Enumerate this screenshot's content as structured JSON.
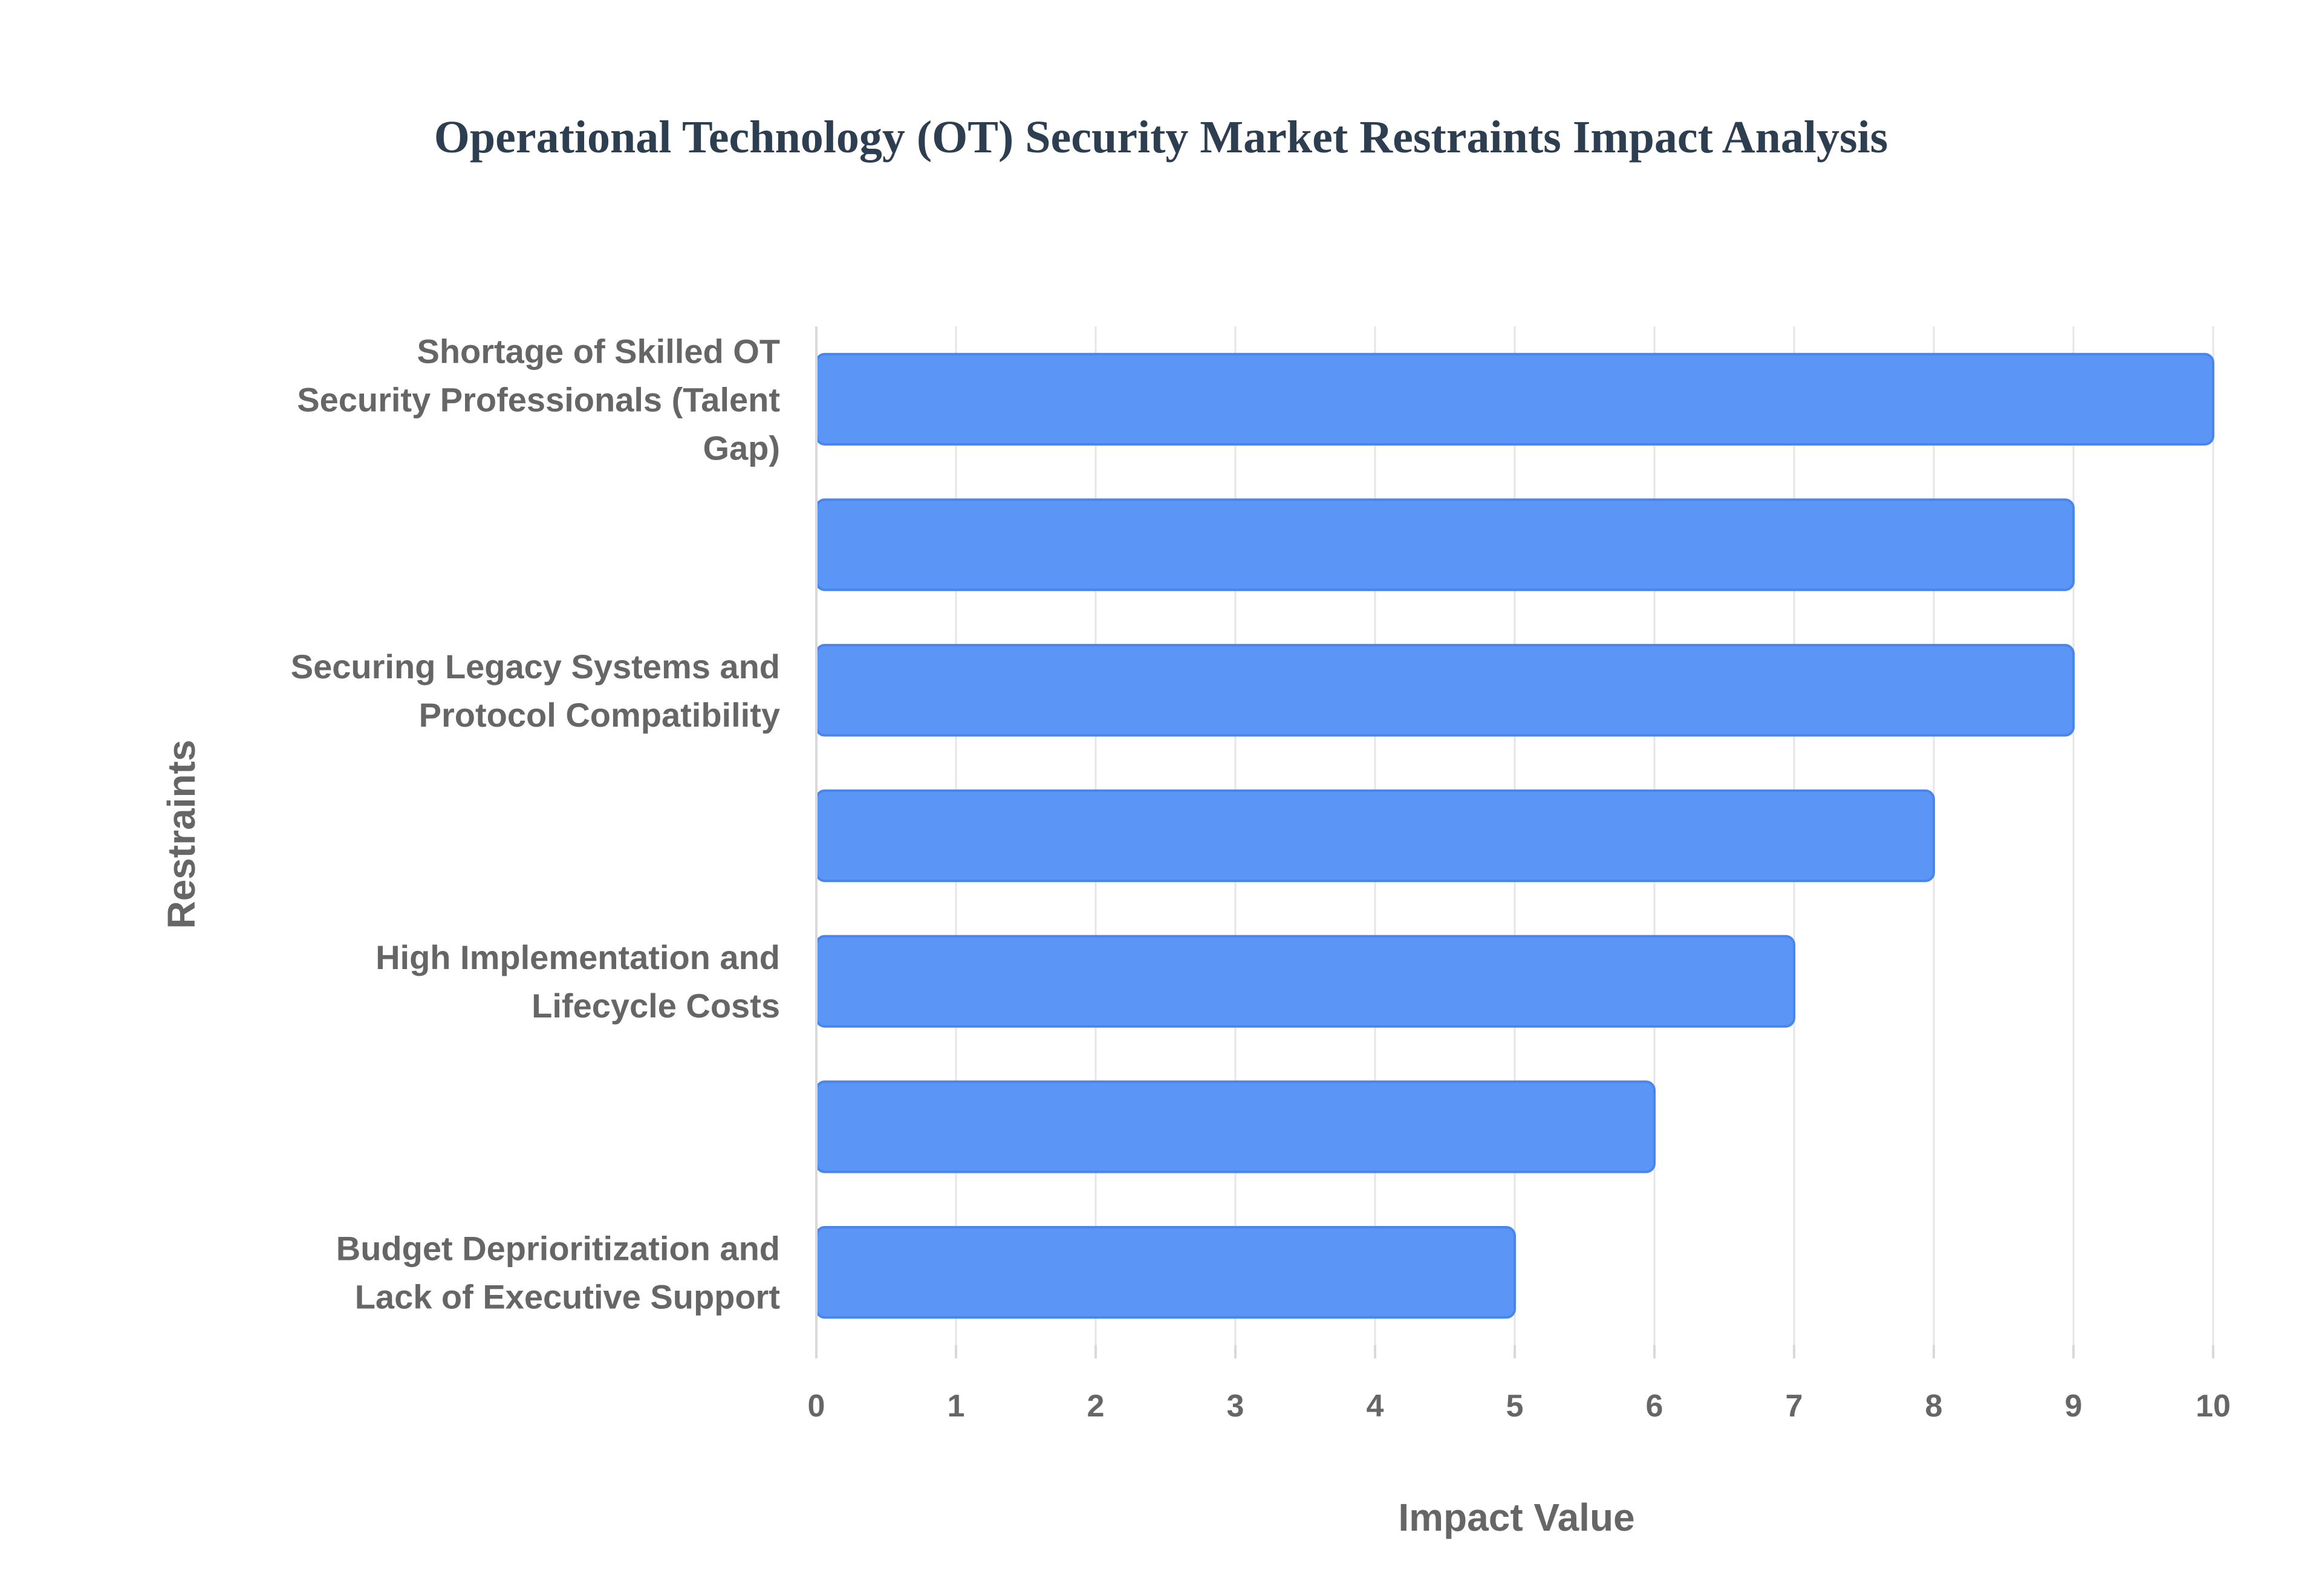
{
  "chart_data": {
    "type": "bar",
    "orientation": "horizontal",
    "title": "Operational Technology (OT) Security Market Restraints Impact Analysis",
    "xlabel": "Impact Value",
    "ylabel": "Restraints",
    "xlim": [
      0,
      10
    ],
    "x_ticks": [
      "0",
      "1",
      "2",
      "3",
      "4",
      "5",
      "6",
      "7",
      "8",
      "9",
      "10"
    ],
    "grid": true,
    "categories": [
      [
        "Shortage of Skilled OT",
        "Security Professionals (Talent",
        "Gap)"
      ],
      [],
      [
        "Securing Legacy Systems and",
        "Protocol Compatibility"
      ],
      [],
      [
        "High Implementation and",
        "Lifecycle Costs"
      ],
      [],
      [
        "Budget Deprioritization and",
        "Lack of Executive Support"
      ]
    ],
    "values": [
      10,
      9,
      9,
      8,
      7,
      6,
      5
    ],
    "bar_fill": "#5b95f6",
    "bar_stroke": "#4a85ee"
  }
}
